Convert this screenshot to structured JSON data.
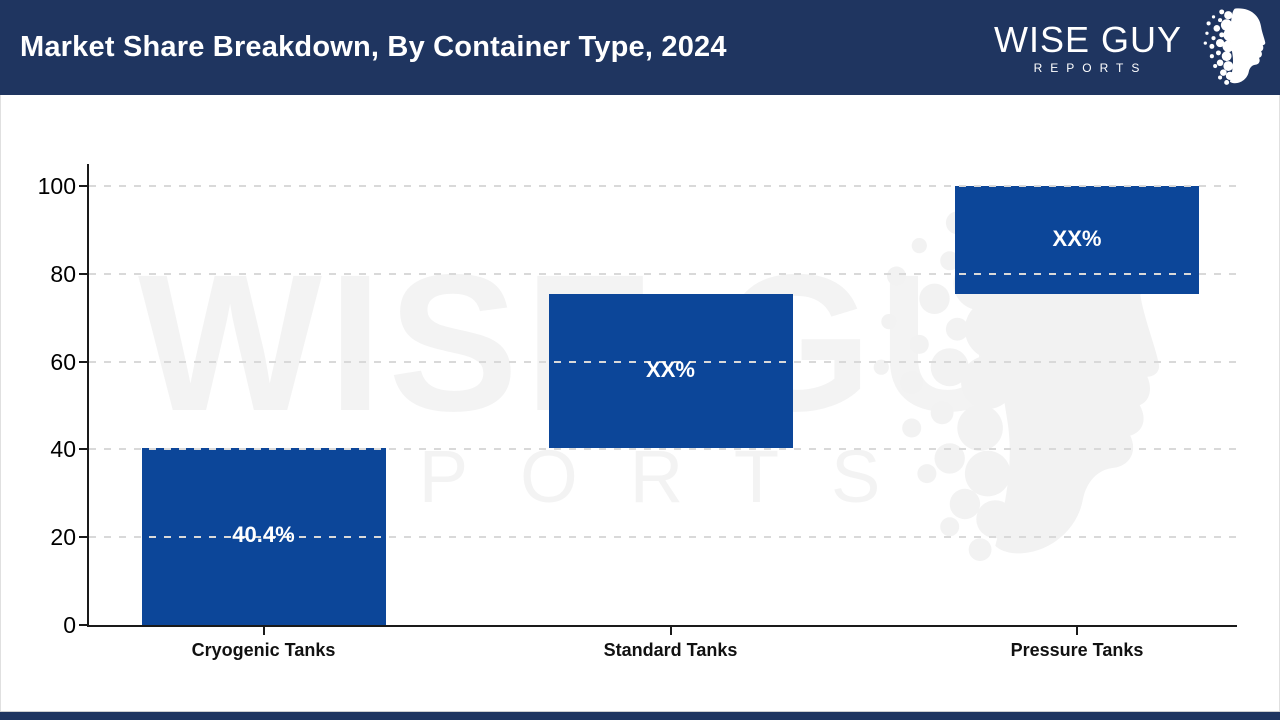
{
  "header": {
    "title": "Market Share Breakdown, By Container Type, 2024",
    "logo": {
      "wordmark": "WISE GUY",
      "subtext": "REPORTS"
    }
  },
  "watermark": {
    "line1": "WISE GUY",
    "line2": "REPORTS"
  },
  "chart_data": {
    "type": "bar",
    "subtype": "floating-segment-columns",
    "title": "Market Share Breakdown, By Container Type, 2024",
    "categories": [
      "Cryogenic Tanks",
      "Standard Tanks",
      "Pressure Tanks"
    ],
    "segments": [
      {
        "category": "Cryogenic Tanks",
        "start": 0,
        "end": 40.4,
        "label": "40.4%"
      },
      {
        "category": "Standard Tanks",
        "start": 40.4,
        "end": 75.5,
        "label": "XX%"
      },
      {
        "category": "Pressure Tanks",
        "start": 75.5,
        "end": 100,
        "label": "XX%"
      }
    ],
    "xlabel": "",
    "ylabel": "",
    "ylim": [
      0,
      100
    ],
    "yticks": [
      0,
      20,
      40,
      60,
      80,
      100
    ],
    "grid": "horizontal dashed gridlines drawn above bars",
    "legend": "none",
    "colors": {
      "bar": "#0c4699",
      "bar_label": "#ffffff",
      "axis": "#1a1a1a",
      "gridline": "#d9d9d9",
      "header_bg": "#1f3560",
      "watermark": "#f3f3f3"
    }
  }
}
